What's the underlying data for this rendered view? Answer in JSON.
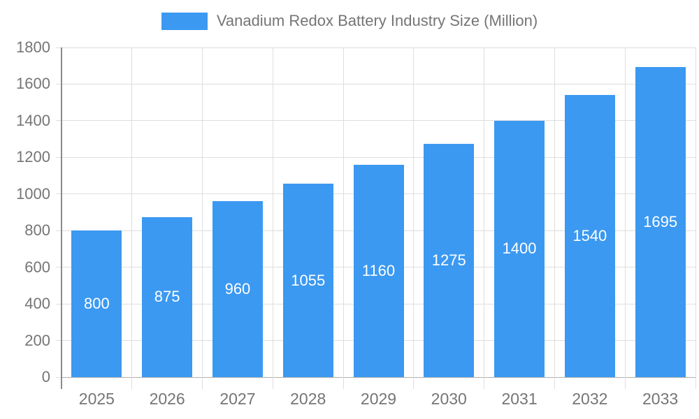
{
  "chart_data": {
    "type": "bar",
    "title": "",
    "legend": {
      "label": "Vanadium Redox Battery Industry Size (Million)",
      "position": "top-center"
    },
    "categories": [
      "2025",
      "2026",
      "2027",
      "2028",
      "2029",
      "2030",
      "2031",
      "2032",
      "2033"
    ],
    "series": [
      {
        "name": "Vanadium Redox Battery Industry Size (Million)",
        "values": [
          800,
          875,
          960,
          1055,
          1160,
          1275,
          1400,
          1540,
          1695
        ]
      }
    ],
    "bar_labels_visible": true,
    "xlabel": "",
    "ylabel": "",
    "ylim": [
      0,
      1800
    ],
    "yticks": [
      0,
      200,
      400,
      600,
      800,
      1000,
      1200,
      1400,
      1600,
      1800
    ],
    "grid": true
  },
  "colors": {
    "bar": "#3B99F1",
    "grid": "#DEDEDE",
    "baseline": "#B0B0B0",
    "axis": "#8A8A8A",
    "text": "#757575",
    "bar_label": "#FFFFFF",
    "background": "#FFFFFF"
  }
}
